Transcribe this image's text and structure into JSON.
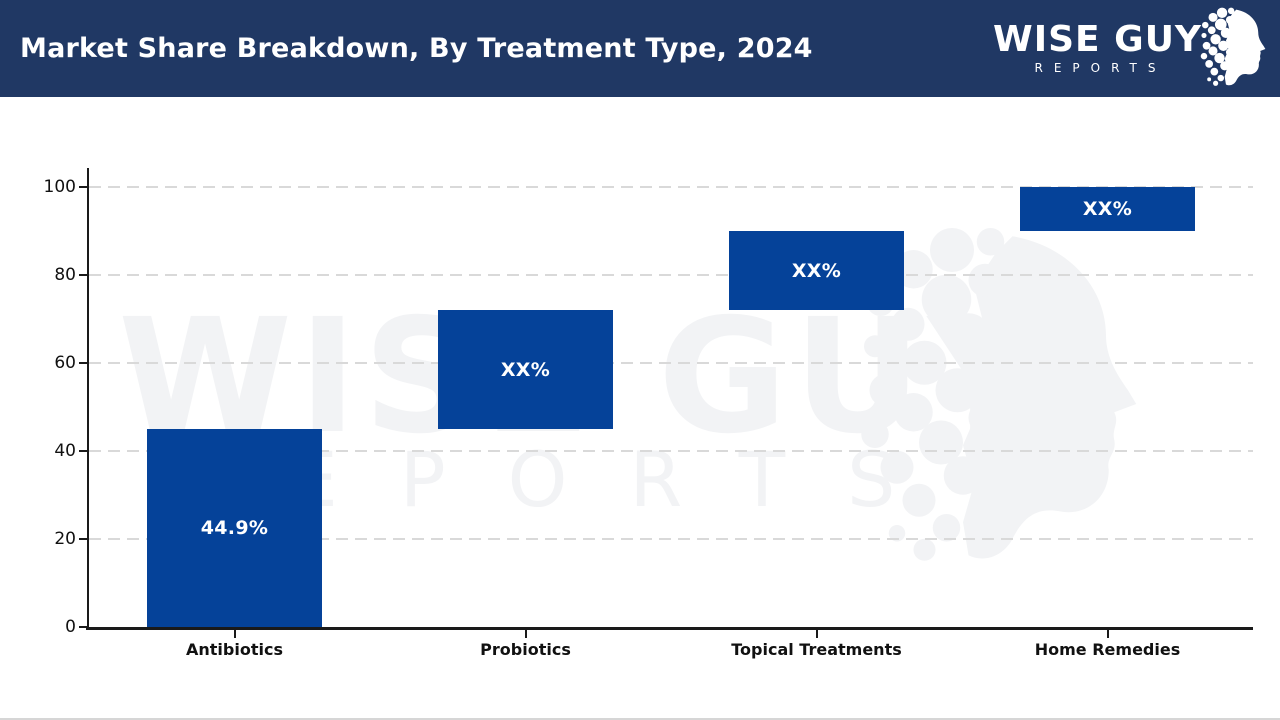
{
  "header": {
    "title": "Market Share Breakdown, By Treatment Type, 2024",
    "logo": {
      "line1": "WISE GUY",
      "line2": "REPORTS"
    }
  },
  "watermark": {
    "line1": "WISE GUY",
    "line2": "REPORTS"
  },
  "chart_data": {
    "type": "bar",
    "subtype": "waterfall",
    "title": "Market Share Breakdown, By Treatment Type, 2024",
    "categories": [
      "Antibiotics",
      "Probiotics",
      "Topical Treatments",
      "Home Remedies"
    ],
    "bars": [
      {
        "category": "Antibiotics",
        "start": 0,
        "end": 44.9,
        "label": "44.9%"
      },
      {
        "category": "Probiotics",
        "start": 44.9,
        "end": 72,
        "label": "XX%"
      },
      {
        "category": "Topical Treatments",
        "start": 72,
        "end": 90,
        "label": "XX%"
      },
      {
        "category": "Home Remedies",
        "start": 90,
        "end": 100,
        "label": "XX%"
      }
    ],
    "bar_color": "#054299",
    "label_color": "#ffffff",
    "bar_width_frac": 0.6,
    "ylim": [
      0,
      100
    ],
    "yticks": [
      0,
      20,
      40,
      60,
      80,
      100
    ],
    "grid": "dashed-horizontal",
    "xlabel": "",
    "ylabel": ""
  }
}
